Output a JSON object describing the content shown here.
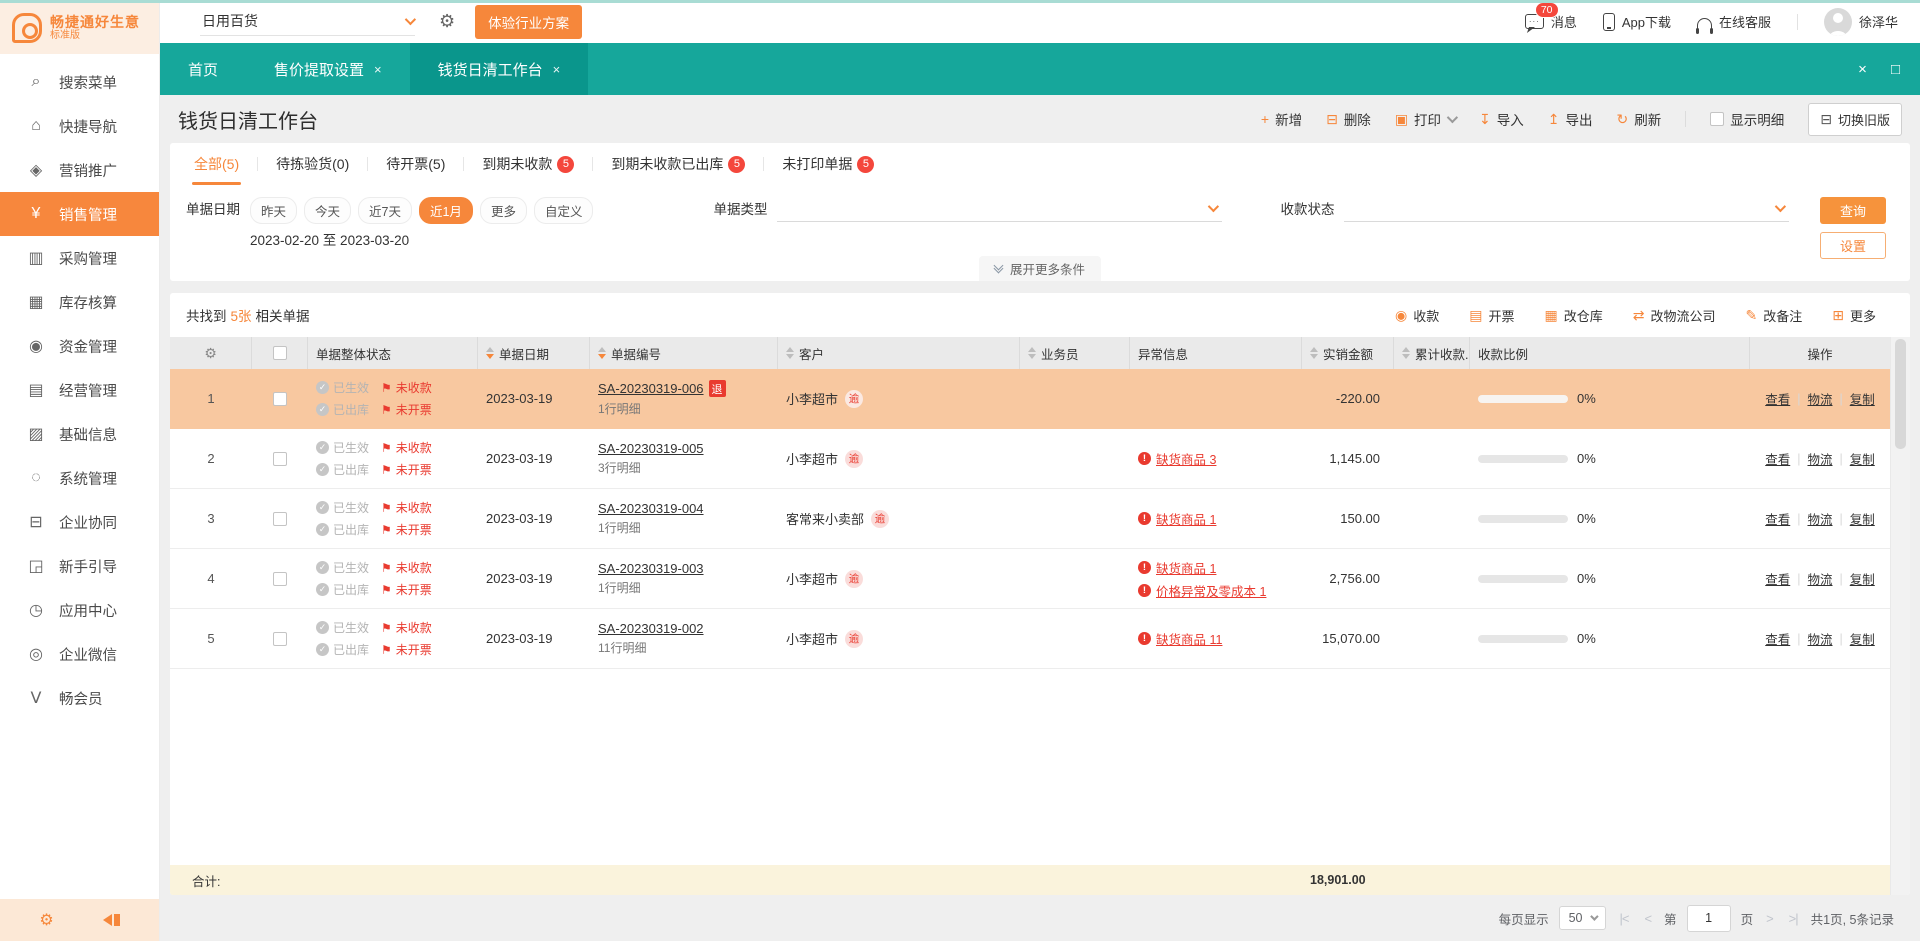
{
  "theme": {
    "accent": "#F6873B",
    "teal": "#16A79B",
    "teal_active": "#0A968C",
    "red": "#E93A2F",
    "row_highlight": "#F8C8A0",
    "total_bg": "#FAF3DC"
  },
  "logo": {
    "brand": "畅捷通好生意",
    "edition": "标准版"
  },
  "topbar": {
    "org_select": "日用百货",
    "gear_icon": "⚙",
    "trial_button": "体验行业方案",
    "messages_label": "消息",
    "messages_badge": "70",
    "app_download_label": "App下载",
    "online_service_label": "在线客服",
    "user_name": "徐泽华"
  },
  "sidebar": {
    "items": [
      {
        "icon": "⌕",
        "label": "搜索菜单"
      },
      {
        "icon": "⌂",
        "label": "快捷导航"
      },
      {
        "icon": "◈",
        "label": "营销推广"
      },
      {
        "icon": "¥",
        "label": "销售管理"
      },
      {
        "icon": "▥",
        "label": "采购管理"
      },
      {
        "icon": "▦",
        "label": "库存核算"
      },
      {
        "icon": "◉",
        "label": "资金管理"
      },
      {
        "icon": "▤",
        "label": "经营管理"
      },
      {
        "icon": "▨",
        "label": "基础信息"
      },
      {
        "icon": "◌",
        "label": "系统管理"
      },
      {
        "icon": "⊟",
        "label": "企业协同"
      },
      {
        "icon": "◲",
        "label": "新手引导"
      },
      {
        "icon": "◷",
        "label": "应用中心"
      },
      {
        "icon": "◎",
        "label": "企业微信"
      },
      {
        "icon": "Ⅴ",
        "label": "畅会员"
      }
    ],
    "bottom_gear_icon": "⚙"
  },
  "tabs": {
    "home": "首页",
    "tab2": "售价提取设置",
    "tab3": "钱货日清工作台",
    "close_glyph": "×",
    "window_close": "×",
    "window_expand": "□"
  },
  "page": {
    "title": "钱货日清工作台"
  },
  "toolbar": {
    "add": {
      "icon": "+",
      "label": "新增"
    },
    "delete": {
      "icon": "⊟",
      "label": "删除"
    },
    "print": {
      "icon": "▣",
      "label": "打印"
    },
    "import": {
      "icon": "↧",
      "label": "导入"
    },
    "export": {
      "icon": "↥",
      "label": "导出"
    },
    "refresh": {
      "icon": "↻",
      "label": "刷新"
    },
    "show_detail": "显示明细",
    "switch_old": {
      "icon": "⊟",
      "label": "切换旧版"
    }
  },
  "filter_tabs": {
    "all": "全部(5)",
    "to_pick": "待拣验货(0)",
    "to_invoice": "待开票(5)",
    "overdue_unpaid": "到期未收款",
    "overdue_unpaid_badge": "5",
    "overdue_shipped": "到期未收款已出库",
    "overdue_shipped_badge": "5",
    "unprinted": "未打印单据",
    "unprinted_badge": "5"
  },
  "filters": {
    "date_label": "单据日期",
    "pills": [
      "昨天",
      "今天",
      "近7天",
      "近1月",
      "更多",
      "自定义"
    ],
    "date_range": "2023-02-20 至 2023-03-20",
    "type_label": "单据类型",
    "pay_status_label": "收款状态",
    "query_button": "查询",
    "settings_button": "设置",
    "expand_more": "展开更多条件"
  },
  "results": {
    "prefix": "共找到",
    "count": "5张",
    "suffix": "相关单据",
    "batch": {
      "receive": {
        "icon": "◉",
        "label": "收款"
      },
      "invoice": {
        "icon": "▤",
        "label": "开票"
      },
      "warehouse": {
        "icon": "▦",
        "label": "改仓库"
      },
      "logistics": {
        "icon": "⇄",
        "label": "改物流公司"
      },
      "remark": {
        "icon": "✎",
        "label": "改备注"
      },
      "more": {
        "icon": "⊞",
        "label": "更多"
      }
    }
  },
  "table": {
    "gear_icon": "⚙",
    "headers": {
      "status": "单据整体状态",
      "date": "单据日期",
      "code": "单据编号",
      "customer": "客户",
      "agent": "业务员",
      "abnormal": "异常信息",
      "amount": "实销金额",
      "cum_received": "累计收款...",
      "ratio": "收款比例",
      "ops": "操作"
    },
    "status_done": [
      "已生效",
      "已出库"
    ],
    "status_flags": [
      "未收款",
      "未开票"
    ],
    "check_glyph": "✓",
    "flag_glyph": "⚑",
    "warn_glyph": "!",
    "overdue_glyph": "逾",
    "return_badge": "退",
    "ops_links": [
      "查看",
      "物流",
      "复制"
    ],
    "rows": [
      {
        "num": "1",
        "date": "2023-03-19",
        "code": "SA-20230319-006",
        "detail": "1行明细",
        "customer": "小李超市",
        "abnormal": [],
        "amount": "-220.00",
        "ratio": "0%"
      },
      {
        "num": "2",
        "date": "2023-03-19",
        "code": "SA-20230319-005",
        "detail": "3行明细",
        "customer": "小李超市",
        "abnormal": [
          "缺货商品 3"
        ],
        "amount": "1,145.00",
        "ratio": "0%"
      },
      {
        "num": "3",
        "date": "2023-03-19",
        "code": "SA-20230319-004",
        "detail": "1行明细",
        "customer": "客常来小卖部",
        "abnormal": [
          "缺货商品 1"
        ],
        "amount": "150.00",
        "ratio": "0%"
      },
      {
        "num": "4",
        "date": "2023-03-19",
        "code": "SA-20230319-003",
        "detail": "1行明细",
        "customer": "小李超市",
        "abnormal": [
          "缺货商品 1",
          "价格异常及零成本 1"
        ],
        "amount": "2,756.00",
        "ratio": "0%"
      },
      {
        "num": "5",
        "date": "2023-03-19",
        "code": "SA-20230319-002",
        "detail": "11行明细",
        "customer": "小李超市",
        "abnormal": [
          "缺货商品 11"
        ],
        "amount": "15,070.00",
        "ratio": "0%"
      }
    ],
    "footer": {
      "label": "合计:",
      "total": "18,901.00"
    }
  },
  "pagination": {
    "per_page_label": "每页显示",
    "per_page": "50",
    "first": "|<",
    "prev": "<",
    "page_pre": "第",
    "page": "1",
    "page_post": "页",
    "next": ">",
    "last": ">|",
    "summary": "共1页, 5条记录"
  }
}
